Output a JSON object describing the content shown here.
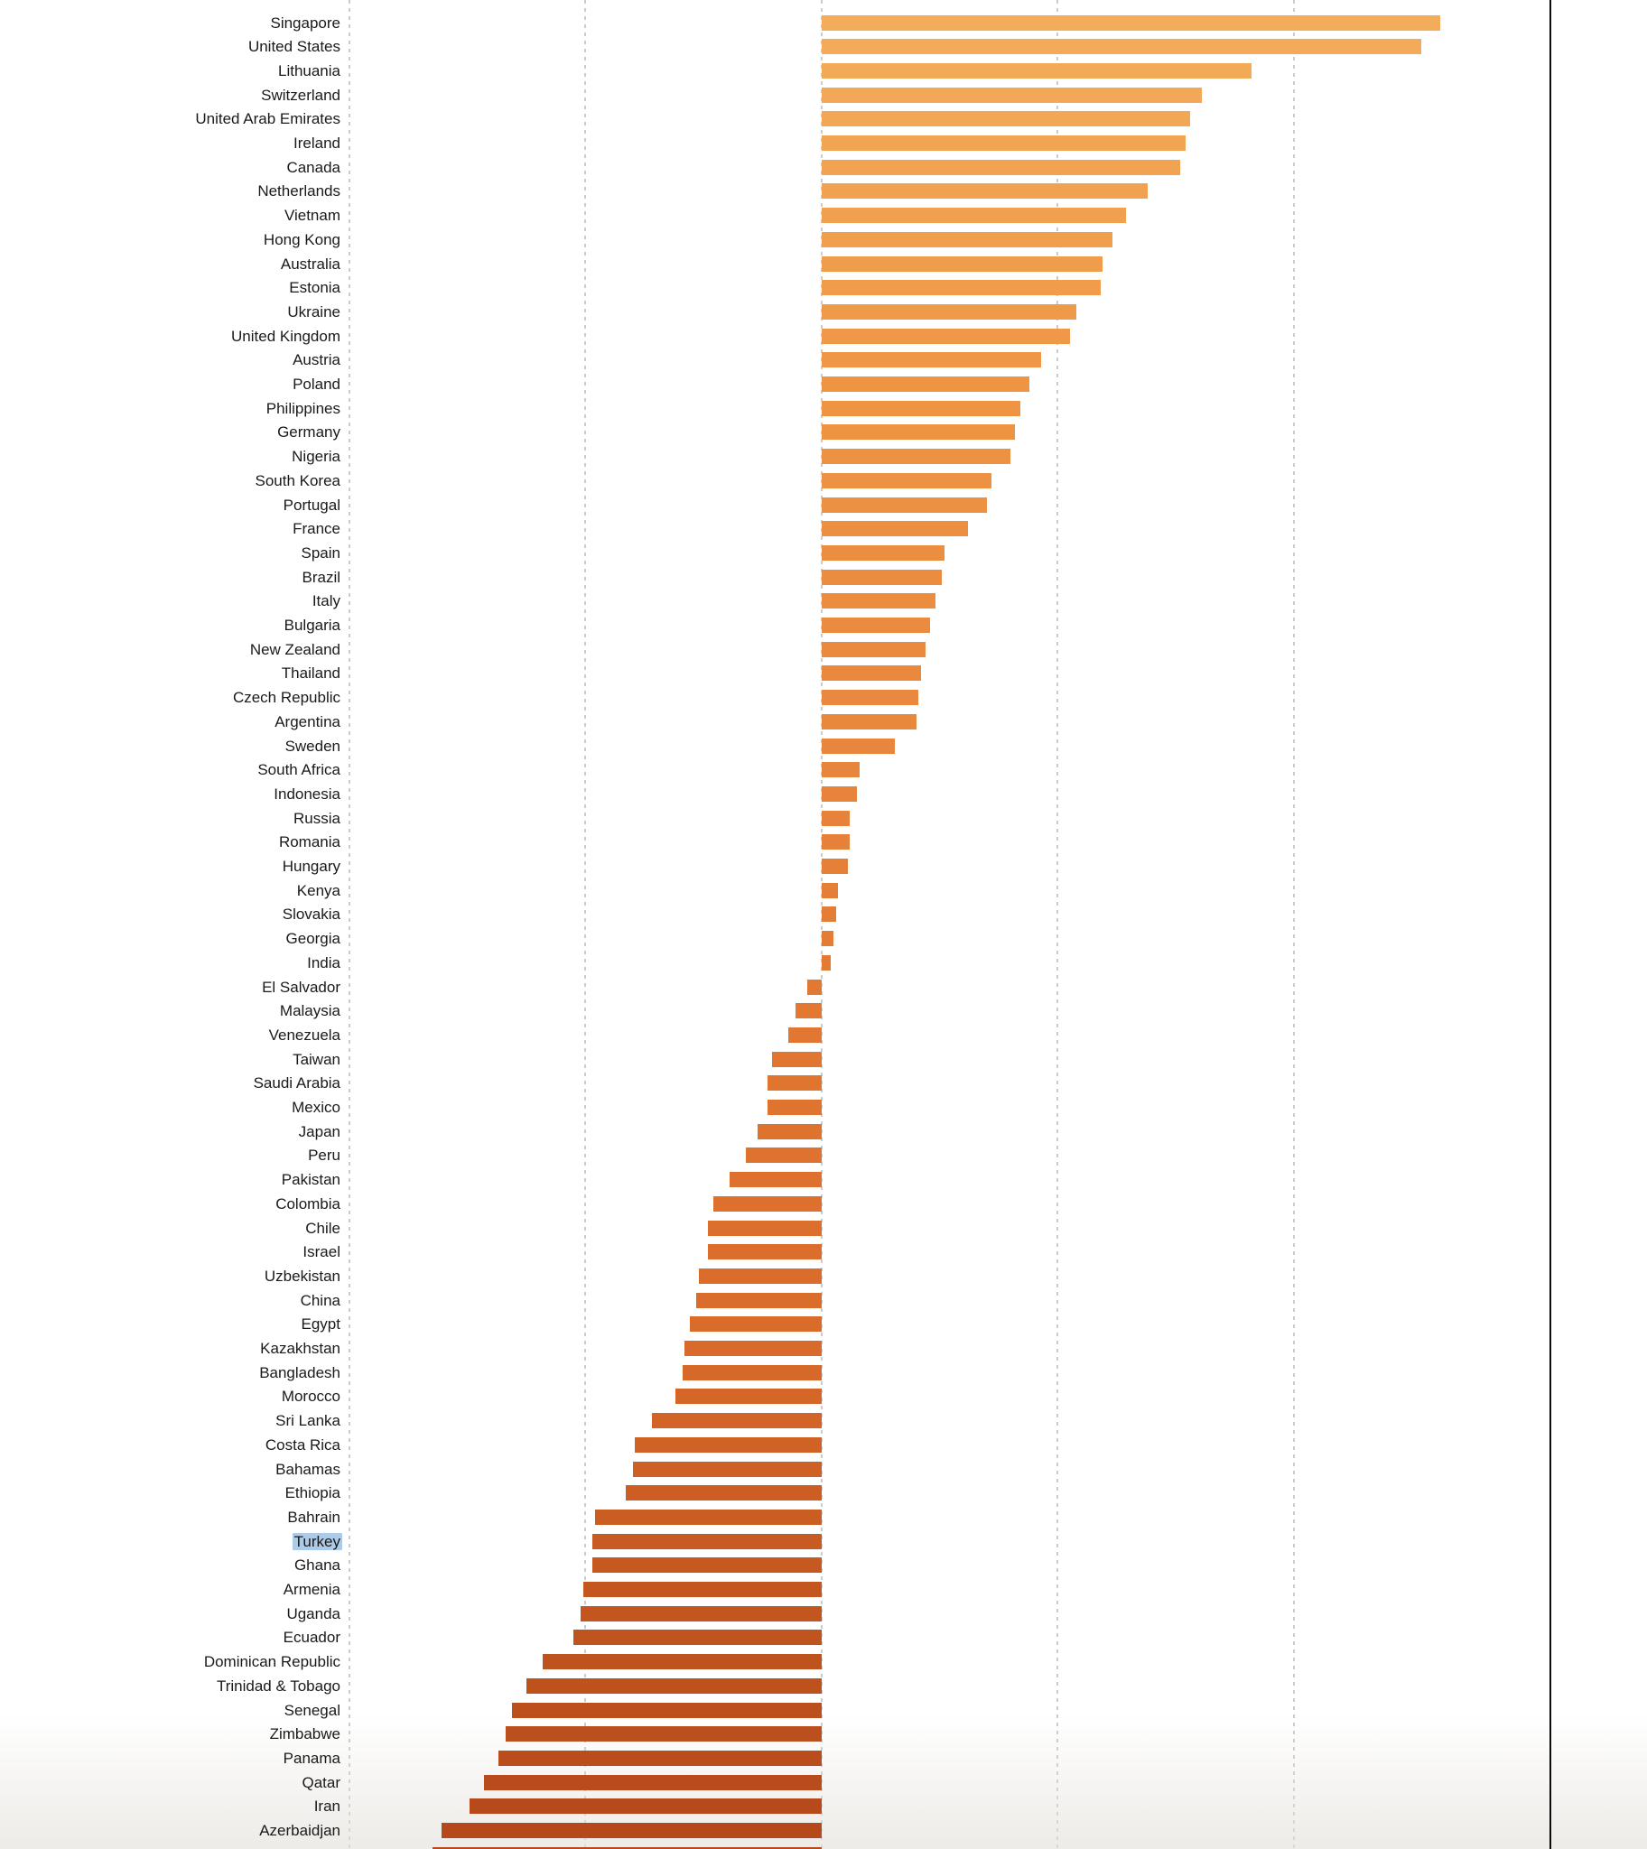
{
  "chart_data": {
    "type": "bar",
    "orientation": "horizontal-diverging",
    "sorted": "descending",
    "axis": {
      "tick_labels_visible": false,
      "gridline_values": [
        -2,
        -1,
        0,
        1,
        2
      ],
      "baseline_value": 0
    },
    "highlighted_country": "Turkey",
    "countries": [
      {
        "name": "Singapore",
        "value": 2.62
      },
      {
        "name": "United States",
        "value": 2.54
      },
      {
        "name": "Lithuania",
        "value": 1.82
      },
      {
        "name": "Switzerland",
        "value": 1.61
      },
      {
        "name": "United Arab Emirates",
        "value": 1.56
      },
      {
        "name": "Ireland",
        "value": 1.54
      },
      {
        "name": "Canada",
        "value": 1.52
      },
      {
        "name": "Netherlands",
        "value": 1.38
      },
      {
        "name": "Vietnam",
        "value": 1.29
      },
      {
        "name": "Hong Kong",
        "value": 1.23
      },
      {
        "name": "Australia",
        "value": 1.19
      },
      {
        "name": "Estonia",
        "value": 1.18
      },
      {
        "name": "Ukraine",
        "value": 1.08
      },
      {
        "name": "United Kingdom",
        "value": 1.05
      },
      {
        "name": "Austria",
        "value": 0.93
      },
      {
        "name": "Poland",
        "value": 0.88
      },
      {
        "name": "Philippines",
        "value": 0.84
      },
      {
        "name": "Germany",
        "value": 0.82
      },
      {
        "name": "Nigeria",
        "value": 0.8
      },
      {
        "name": "South Korea",
        "value": 0.72
      },
      {
        "name": "Portugal",
        "value": 0.7
      },
      {
        "name": "France",
        "value": 0.62
      },
      {
        "name": "Spain",
        "value": 0.52
      },
      {
        "name": "Brazil",
        "value": 0.51
      },
      {
        "name": "Italy",
        "value": 0.48
      },
      {
        "name": "Bulgaria",
        "value": 0.46
      },
      {
        "name": "New Zealand",
        "value": 0.44
      },
      {
        "name": "Thailand",
        "value": 0.42
      },
      {
        "name": "Czech Republic",
        "value": 0.41
      },
      {
        "name": "Argentina",
        "value": 0.4
      },
      {
        "name": "Sweden",
        "value": 0.31
      },
      {
        "name": "South Africa",
        "value": 0.16
      },
      {
        "name": "Indonesia",
        "value": 0.15
      },
      {
        "name": "Russia",
        "value": 0.12
      },
      {
        "name": "Romania",
        "value": 0.12
      },
      {
        "name": "Hungary",
        "value": 0.11
      },
      {
        "name": "Kenya",
        "value": 0.07
      },
      {
        "name": "Slovakia",
        "value": 0.06
      },
      {
        "name": "Georgia",
        "value": 0.05
      },
      {
        "name": "India",
        "value": 0.04
      },
      {
        "name": "El Salvador",
        "value": -0.06
      },
      {
        "name": "Malaysia",
        "value": -0.11
      },
      {
        "name": "Venezuela",
        "value": -0.14
      },
      {
        "name": "Taiwan",
        "value": -0.21
      },
      {
        "name": "Saudi Arabia",
        "value": -0.23
      },
      {
        "name": "Mexico",
        "value": -0.23
      },
      {
        "name": "Japan",
        "value": -0.27
      },
      {
        "name": "Peru",
        "value": -0.32
      },
      {
        "name": "Pakistan",
        "value": -0.39
      },
      {
        "name": "Colombia",
        "value": -0.46
      },
      {
        "name": "Chile",
        "value": -0.48
      },
      {
        "name": "Israel",
        "value": -0.48
      },
      {
        "name": "Uzbekistan",
        "value": -0.52
      },
      {
        "name": "China",
        "value": -0.53
      },
      {
        "name": "Egypt",
        "value": -0.56
      },
      {
        "name": "Kazakhstan",
        "value": -0.58
      },
      {
        "name": "Bangladesh",
        "value": -0.59
      },
      {
        "name": "Morocco",
        "value": -0.62
      },
      {
        "name": "Sri Lanka",
        "value": -0.72
      },
      {
        "name": "Costa Rica",
        "value": -0.79
      },
      {
        "name": "Bahamas",
        "value": -0.8
      },
      {
        "name": "Ethiopia",
        "value": -0.83
      },
      {
        "name": "Bahrain",
        "value": -0.96
      },
      {
        "name": "Turkey",
        "value": -0.97
      },
      {
        "name": "Ghana",
        "value": -0.97
      },
      {
        "name": "Armenia",
        "value": -1.01
      },
      {
        "name": "Uganda",
        "value": -1.02
      },
      {
        "name": "Ecuador",
        "value": -1.05
      },
      {
        "name": "Dominican Republic",
        "value": -1.18
      },
      {
        "name": "Trinidad & Tobago",
        "value": -1.25
      },
      {
        "name": "Senegal",
        "value": -1.31
      },
      {
        "name": "Zimbabwe",
        "value": -1.34
      },
      {
        "name": "Panama",
        "value": -1.37
      },
      {
        "name": "Qatar",
        "value": -1.43
      },
      {
        "name": "Iran",
        "value": -1.49
      },
      {
        "name": "Azerbaidjan",
        "value": -1.61
      },
      {
        "name": "",
        "value": -1.65,
        "cut_off_at_bottom": true
      }
    ],
    "colors": {
      "bar_gradient_stops": [
        "#F3AD5A",
        "#EE9443",
        "#E8843C",
        "#E0752F",
        "#D96A2B",
        "#C4581F",
        "#B5491B"
      ],
      "selection_highlight": "#ABCBE8",
      "gridline": "#CBCBCB",
      "frame_line": "#0B0B0B",
      "label_text": "#1A1A1A",
      "background": "#FFFFFF"
    }
  }
}
